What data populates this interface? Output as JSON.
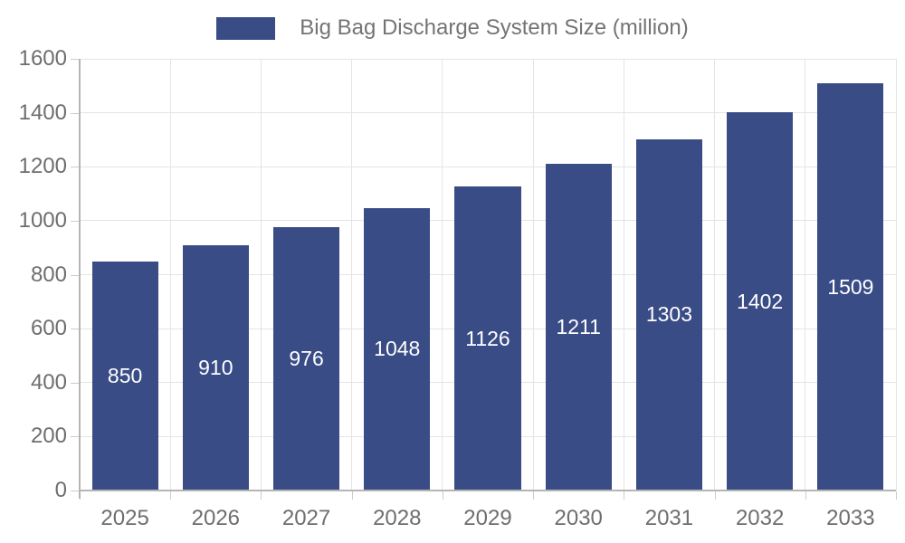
{
  "legend": {
    "label": "Big Bag Discharge System Size (million)"
  },
  "colors": {
    "bar": "#394C86",
    "value_label": "#ffffff",
    "grid": "#e4e4e4",
    "axis": "#b5b5b5",
    "tick": "#cccccc",
    "axis_text": "#6e6e6e",
    "legend_text": "#747474"
  },
  "chart_data": {
    "type": "bar",
    "title": "",
    "legend": "Big Bag Discharge System Size (million)",
    "categories": [
      "2025",
      "2026",
      "2027",
      "2028",
      "2029",
      "2030",
      "2031",
      "2032",
      "2033"
    ],
    "values": [
      850,
      910,
      976,
      1048,
      1126,
      1211,
      1303,
      1402,
      1509
    ],
    "xlabel": "",
    "ylabel": "",
    "ylim": [
      0,
      1600
    ],
    "yticks": [
      0,
      200,
      400,
      600,
      800,
      1000,
      1200,
      1400,
      1600
    ],
    "grid": true,
    "legend_position": "top",
    "value_labels": "inside-center"
  }
}
